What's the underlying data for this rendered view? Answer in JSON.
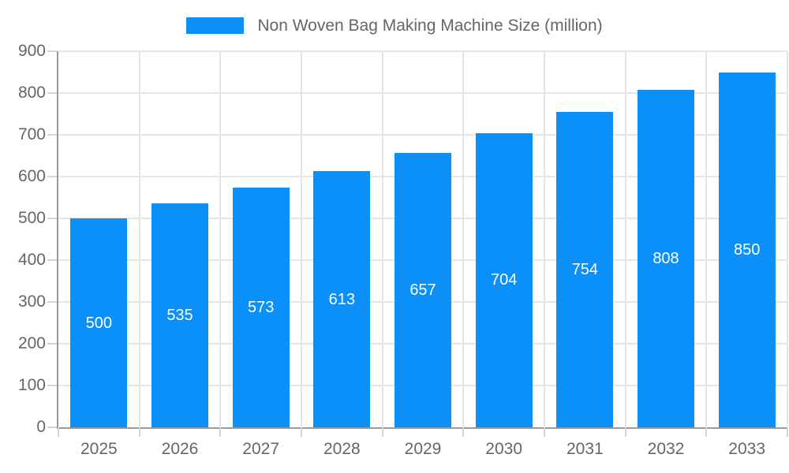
{
  "colors": {
    "bar": "#0B90F9",
    "legend_text": "#666666",
    "axis_label": "#666666",
    "axis_line": "#999999",
    "grid_line": "#e6e6e6",
    "tick_line": "#d4d4d4",
    "bar_value_label": "#ffffff",
    "background": "#ffffff"
  },
  "legend": {
    "label": "Non Woven Bag Making Machine Size (million)"
  },
  "chart_data": {
    "type": "bar",
    "title": "",
    "categories": [
      "2025",
      "2026",
      "2027",
      "2028",
      "2029",
      "2030",
      "2031",
      "2032",
      "2033"
    ],
    "series": [
      {
        "name": "Non Woven Bag Making Machine Size (million)",
        "values": [
          500,
          535,
          573,
          613,
          657,
          704,
          754,
          808,
          850
        ]
      }
    ],
    "xlabel": "",
    "ylabel": "",
    "ylim": [
      0,
      900
    ],
    "yticks": [
      0,
      100,
      200,
      300,
      400,
      500,
      600,
      700,
      800,
      900
    ],
    "grid": true,
    "legend_position": "top",
    "value_labels": "centered-inside-bars"
  }
}
